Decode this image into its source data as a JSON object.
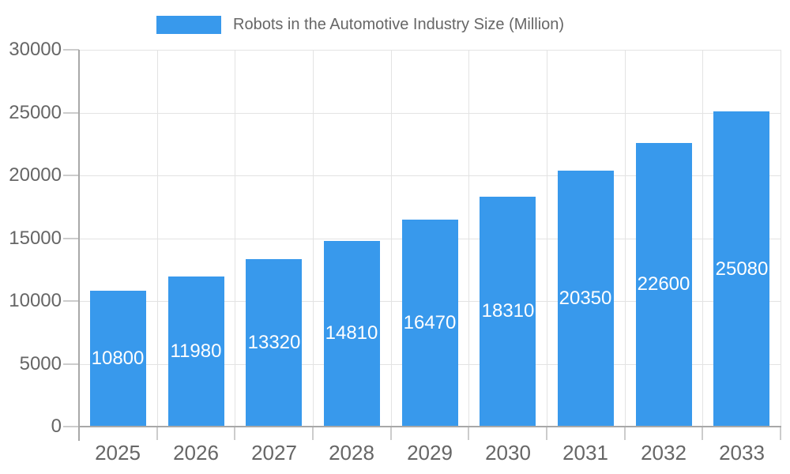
{
  "legend": {
    "label": "Robots in the Automotive Industry Size (Million)"
  },
  "chart_data": {
    "type": "bar",
    "title": "Robots in the Automotive Industry Size (Million)",
    "categories": [
      "2025",
      "2026",
      "2027",
      "2028",
      "2029",
      "2030",
      "2031",
      "2032",
      "2033"
    ],
    "values": [
      10800,
      11980,
      13320,
      14810,
      16470,
      18310,
      20350,
      22600,
      25080
    ],
    "value_labels": [
      "10800",
      "11980",
      "13320",
      "14810",
      "16470",
      "18310",
      "20350",
      "22600",
      "25080"
    ],
    "xlabel": "",
    "ylabel": "",
    "ylim": [
      0,
      30000
    ],
    "y_ticks": [
      0,
      5000,
      10000,
      15000,
      20000,
      25000,
      30000
    ],
    "y_tick_labels": [
      "0",
      "5000",
      "10000",
      "15000",
      "20000",
      "25000",
      "30000"
    ],
    "grid": true,
    "legend_position": "top",
    "colors": {
      "bar": "#3899EC",
      "value_label": "#FFFFFF",
      "grid": "#E3E3E3",
      "axis": "#A8A8A8",
      "tick_mark": "#CCCCCC",
      "text": "#666666",
      "background": "#FFFFFF"
    }
  }
}
